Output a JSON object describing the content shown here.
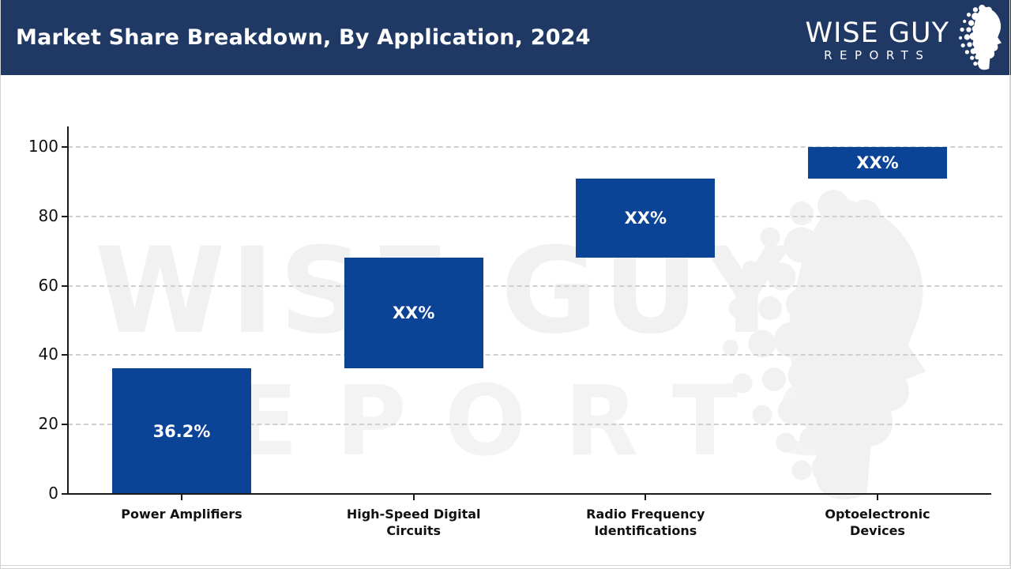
{
  "header": {
    "title": "Market Share Breakdown, By Application, 2024",
    "logo": {
      "line1": "WISE GUY",
      "line2": "REPORTS"
    }
  },
  "watermark": {
    "line1": "WISE GUY",
    "line2": "REPORTS"
  },
  "colors": {
    "header_bg": "#1F3864",
    "bar": "#0B4397",
    "bar_label": "#FFFFFF",
    "grid": "#CFCFCF",
    "axis": "#1A1A1A",
    "watermark": "#F1F1F1"
  },
  "chart_data": {
    "type": "bar",
    "subtype": "floating-waterfall",
    "title": "Market Share Breakdown, By Application, 2024",
    "categories": [
      "Power Amplifiers",
      "High-Speed Digital Circuits",
      "Radio Frequency Identifications",
      "Optoelectronic Devices"
    ],
    "series": [
      {
        "name": "Power Amplifiers",
        "start": 0,
        "end": 36.2,
        "label": "36.2%"
      },
      {
        "name": "High-Speed Digital Circuits",
        "start": 36.2,
        "end": 68,
        "label": "XX%"
      },
      {
        "name": "Radio Frequency Identifications",
        "start": 68,
        "end": 91,
        "label": "XX%"
      },
      {
        "name": "Optoelectronic Devices",
        "start": 91,
        "end": 100,
        "label": "XX%"
      }
    ],
    "yticks": [
      0,
      20,
      40,
      60,
      80,
      100
    ],
    "ylim": [
      0,
      100
    ],
    "xlabel": "",
    "ylabel": "",
    "grid": "horizontal-dashed",
    "legend_position": "none"
  }
}
